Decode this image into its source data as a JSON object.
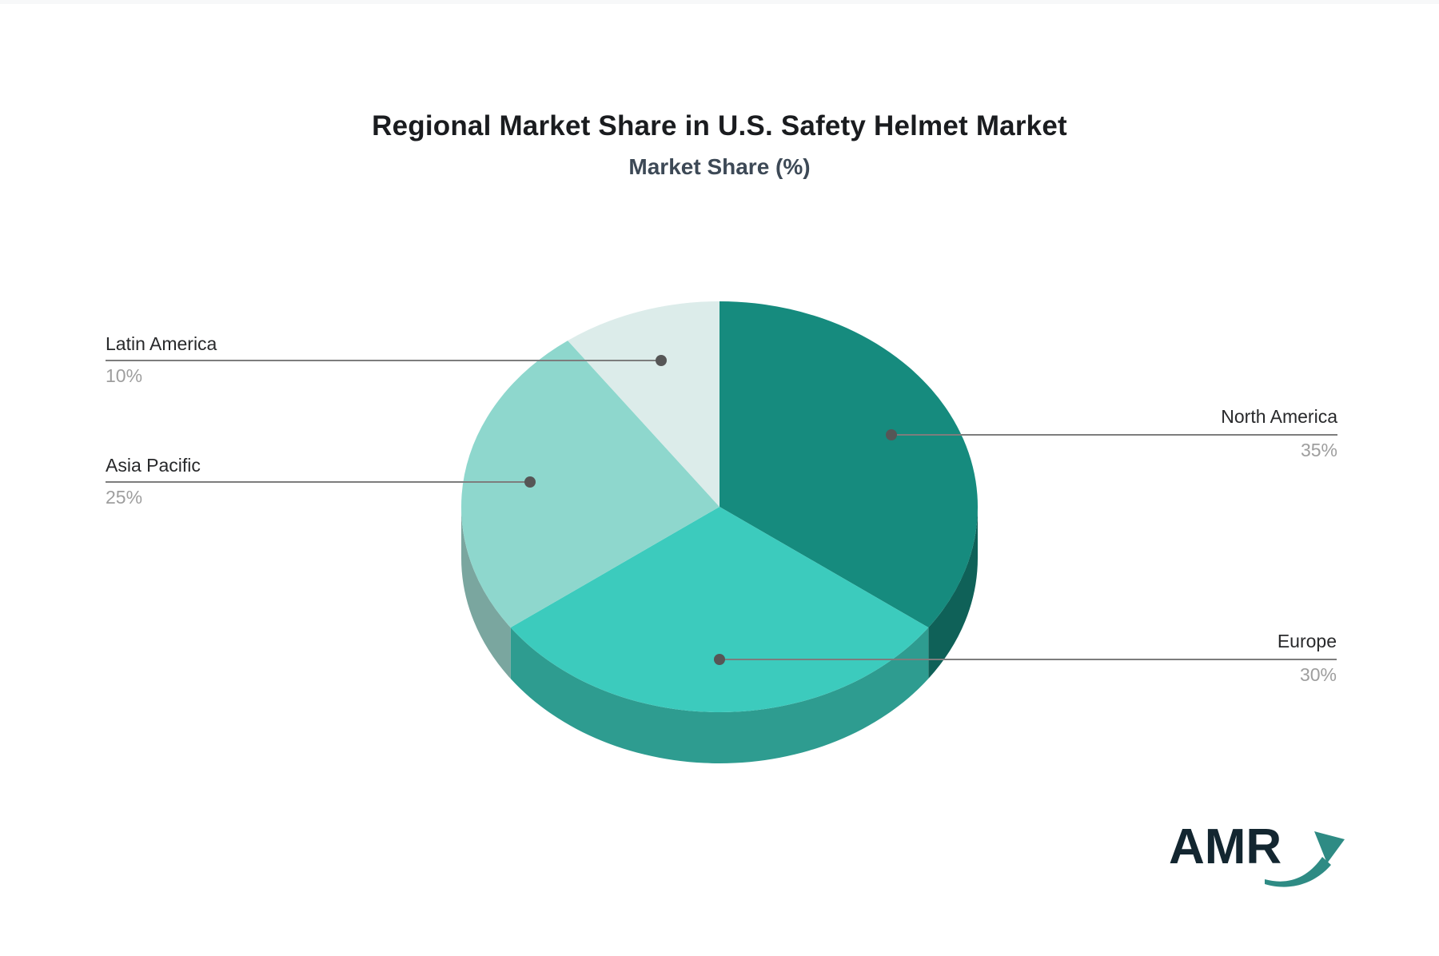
{
  "header": {
    "title": "Regional Market Share in U.S. Safety Helmet Market",
    "subtitle": "Market Share (%)"
  },
  "chart_data": {
    "type": "pie",
    "style": "3d",
    "title": "Regional Market Share in U.S. Safety Helmet Market",
    "subtitle": "Market Share (%)",
    "unit": "%",
    "start_angle_deg": 0,
    "direction": "clockwise",
    "legend_position": "callouts",
    "slices": [
      {
        "label": "North America",
        "value": 35,
        "pct_label": "35%",
        "color": "#168b7e",
        "side_color": "#0f6158"
      },
      {
        "label": "Europe",
        "value": 30,
        "pct_label": "30%",
        "color": "#3ccbbd",
        "side_color": "#2e9c90"
      },
      {
        "label": "Asia Pacific",
        "value": 25,
        "pct_label": "25%",
        "color": "#8ed7cd",
        "side_color": "#7aa69f"
      },
      {
        "label": "Latin America",
        "value": 10,
        "pct_label": "10%",
        "color": "#dcecea",
        "side_color": "#c2d8d4"
      }
    ],
    "label_color": "#28292b",
    "percent_color": "#9e9e9e",
    "line_color": "#7d7d7d"
  },
  "logo": {
    "text": "AMR",
    "text_color": "#132630",
    "arrow_color": "#2e8b84"
  }
}
